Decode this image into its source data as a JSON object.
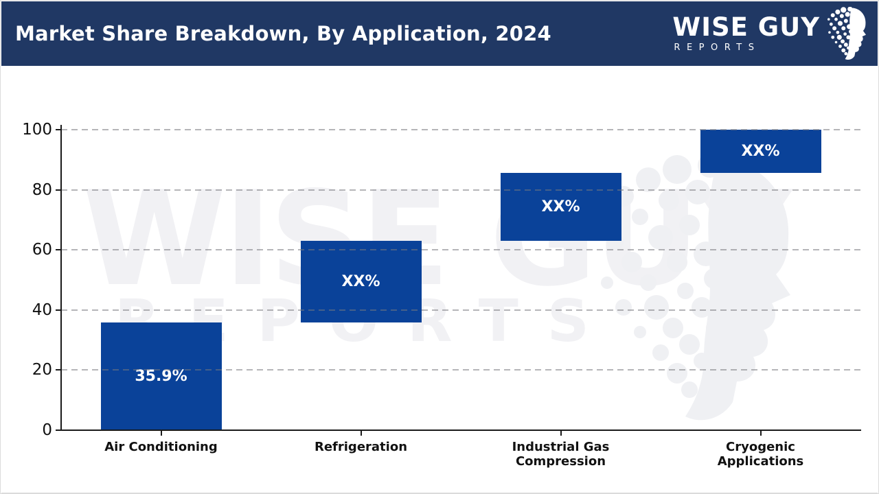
{
  "header": {
    "title": "Market Share Breakdown, By Application, 2024",
    "logo": {
      "line1": "WISE GUY",
      "line2": "REPORTS"
    }
  },
  "watermark": {
    "line1": "WISE GUY",
    "line2": "REPORTS"
  },
  "chart_data": {
    "type": "bar",
    "subtype": "waterfall",
    "title": "Market Share Breakdown, By Application, 2024",
    "categories": [
      "Air Conditioning",
      "Refrigeration",
      "Industrial Gas\nCompression",
      "Cryogenic\nApplications"
    ],
    "series": [
      {
        "name": "Market share (%)",
        "segments": [
          {
            "category": "Air Conditioning",
            "start": 0,
            "end": 35.9,
            "label": "35.9%"
          },
          {
            "category": "Refrigeration",
            "start": 35.9,
            "end": 63,
            "label": "XX%"
          },
          {
            "category": "Industrial Gas Compression",
            "start": 63,
            "end": 85.6,
            "label": "XX%"
          },
          {
            "category": "Cryogenic Applications",
            "start": 85.6,
            "end": 100,
            "label": "XX%"
          }
        ]
      }
    ],
    "ylim": [
      0,
      100
    ],
    "yticks": [
      0,
      20,
      40,
      60,
      80,
      100
    ],
    "xlabel": "",
    "ylabel": "",
    "grid": "horizontal-dashed",
    "legend": "none",
    "colors": {
      "bar": "#0a4299",
      "bar_label": "#ffffff",
      "header_bg": "#203864",
      "axis": "#1a1a1a",
      "grid": "#bdbdbd",
      "watermark": "#f1f1f4"
    }
  }
}
